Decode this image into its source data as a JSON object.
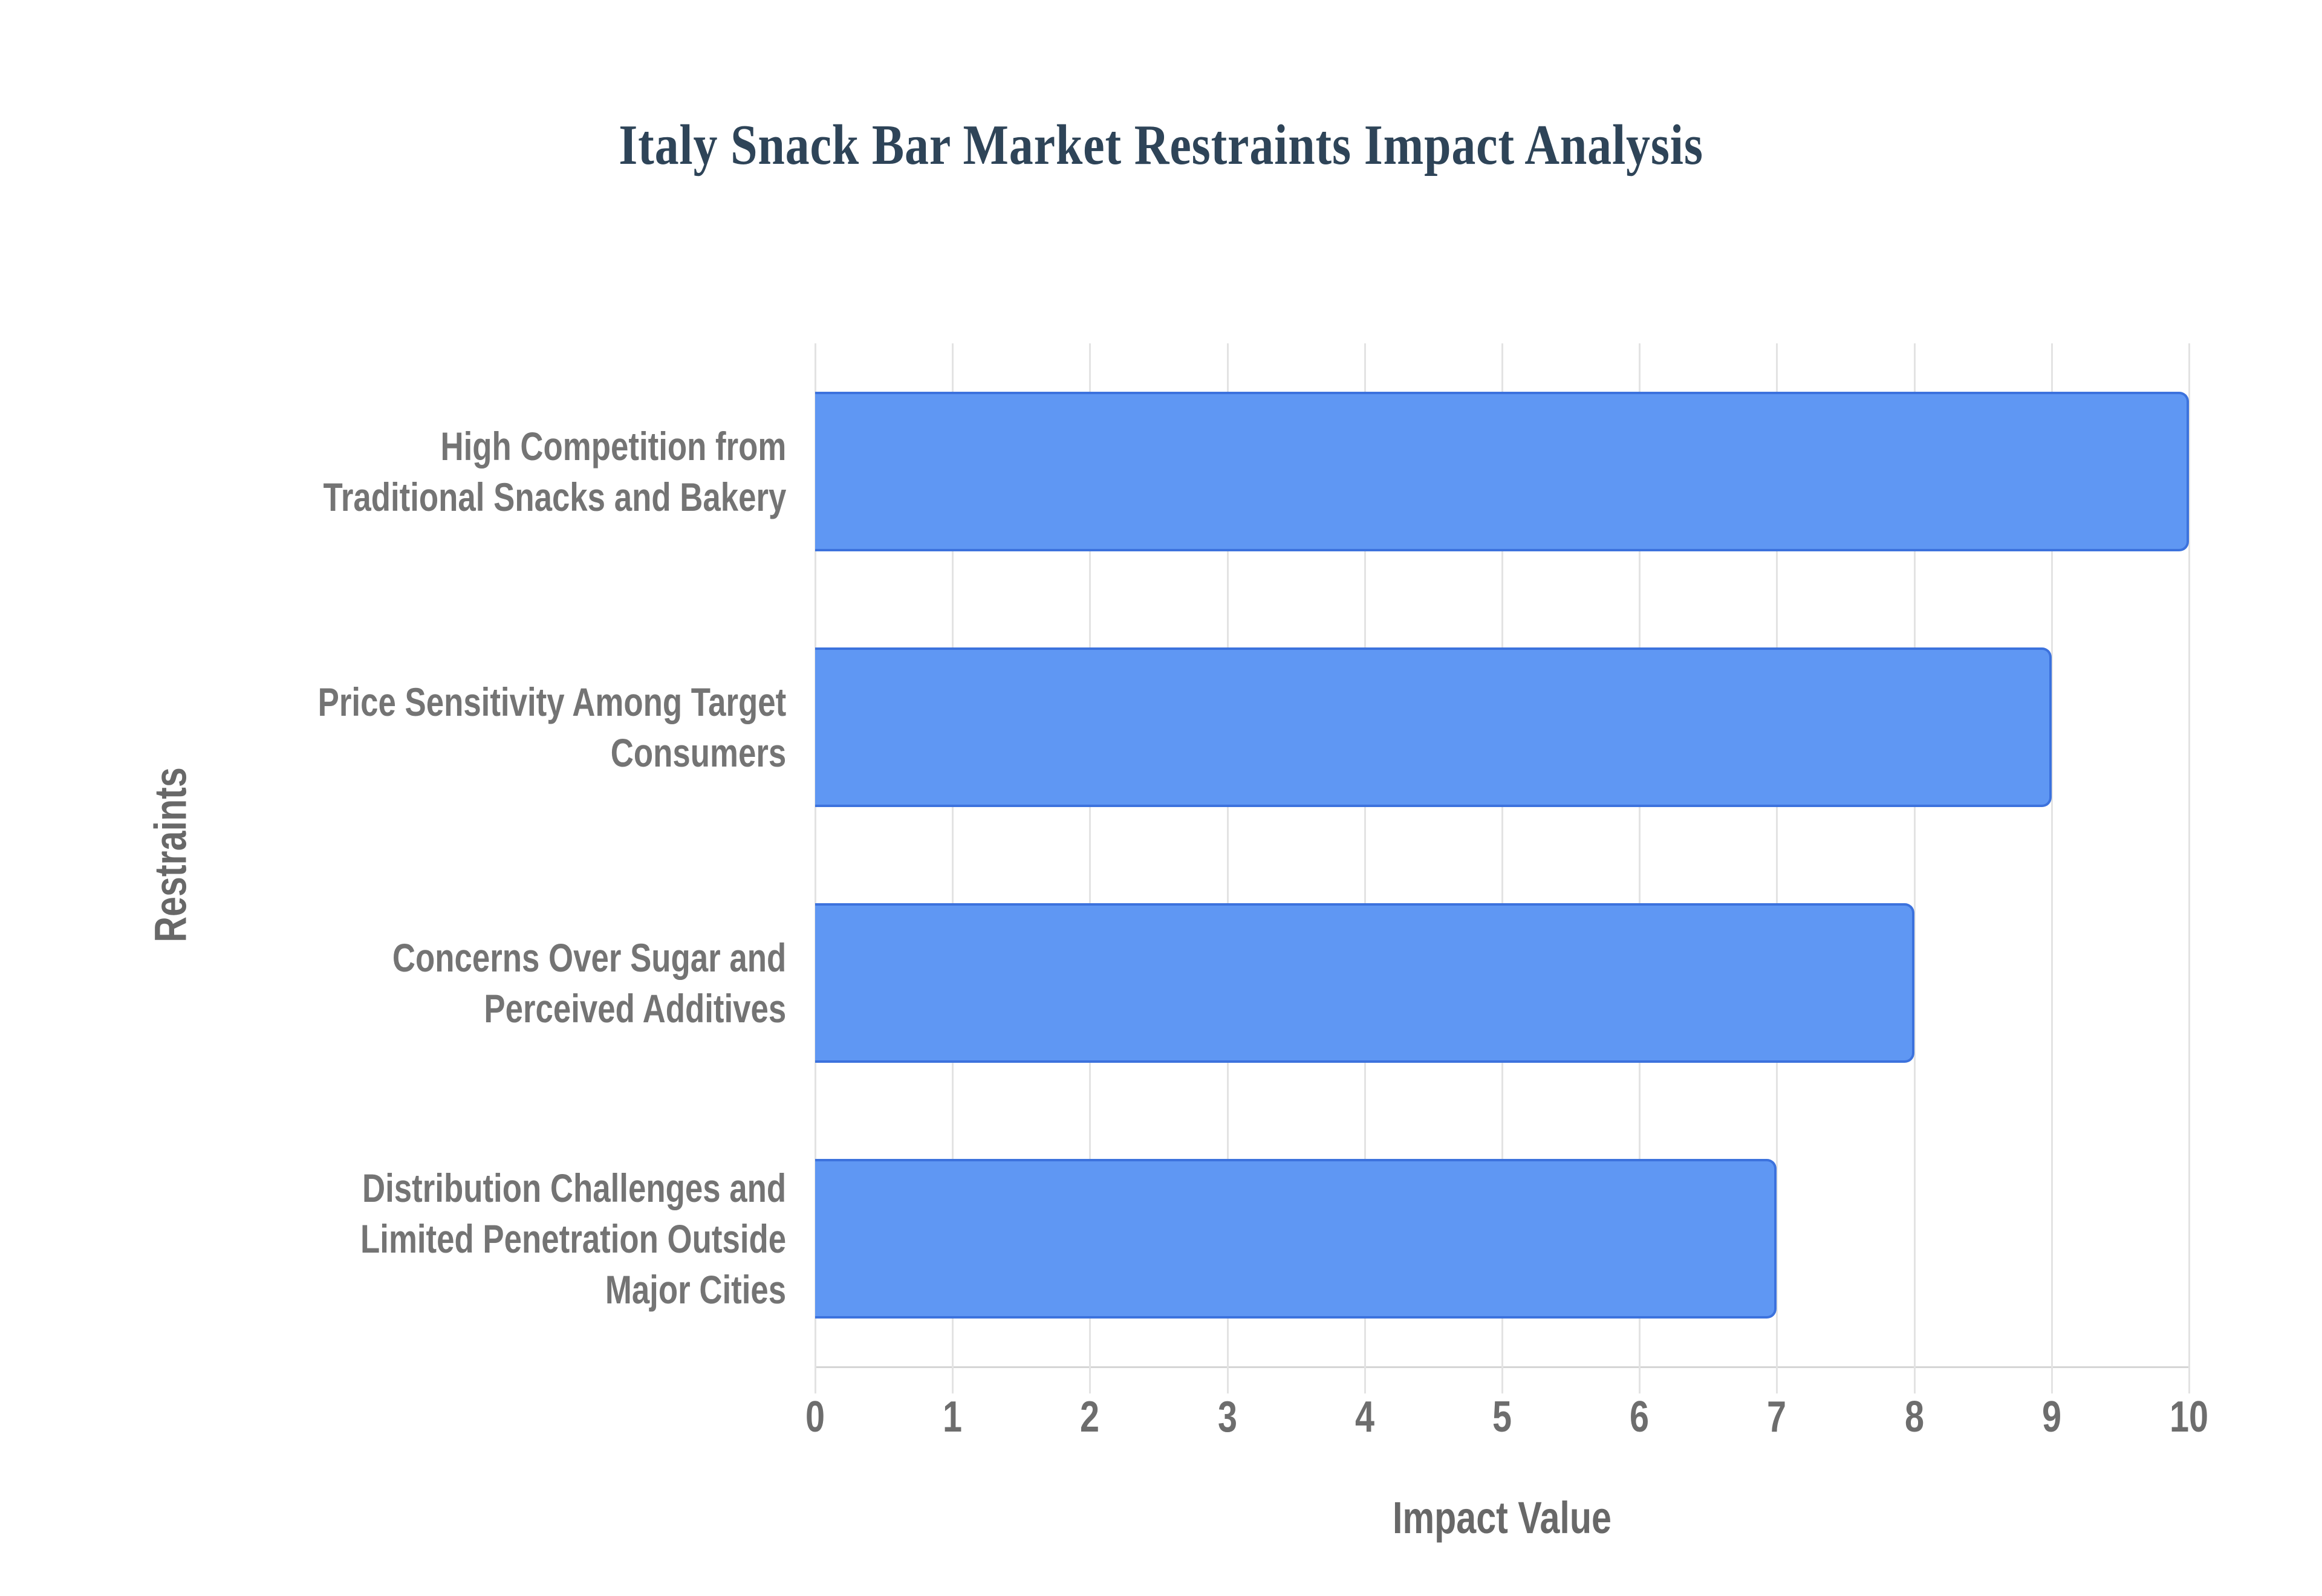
{
  "chart_data": {
    "type": "bar",
    "orientation": "horizontal",
    "title": "Italy Snack Bar Market Restraints Impact Analysis",
    "xlabel": "Impact Value",
    "ylabel": "Restraints",
    "categories": [
      "High Competition from Traditional Snacks and Bakery",
      "Price Sensitivity Among Target Consumers",
      "Concerns Over Sugar and Perceived Additives",
      "Distribution Challenges and Limited Penetration Outside Major Cities"
    ],
    "category_lines": [
      [
        "High Competition from",
        "Traditional Snacks and Bakery"
      ],
      [
        "Price Sensitivity Among Target",
        "Consumers"
      ],
      [
        "Concerns Over Sugar and",
        "Perceived Additives"
      ],
      [
        "Distribution Challenges and",
        "Limited Penetration Outside",
        "Major Cities"
      ]
    ],
    "values": [
      10,
      9,
      8,
      7
    ],
    "xlim": [
      0,
      10
    ],
    "xticks": [
      0,
      1,
      2,
      3,
      4,
      5,
      6,
      7,
      8,
      9,
      10
    ],
    "grid": "vertical-only",
    "legend": "none",
    "colors": {
      "background": "#ffffff",
      "bar_fill": "#5f97f3",
      "bar_border": "#3c72dd",
      "gridline": "#e3e3e3",
      "axis_line": "#d5d5d5",
      "title_text": "#2e4458",
      "label_text": "#747474",
      "tick_text": "#6d6d6d",
      "axis_title_text": "#686868"
    }
  }
}
